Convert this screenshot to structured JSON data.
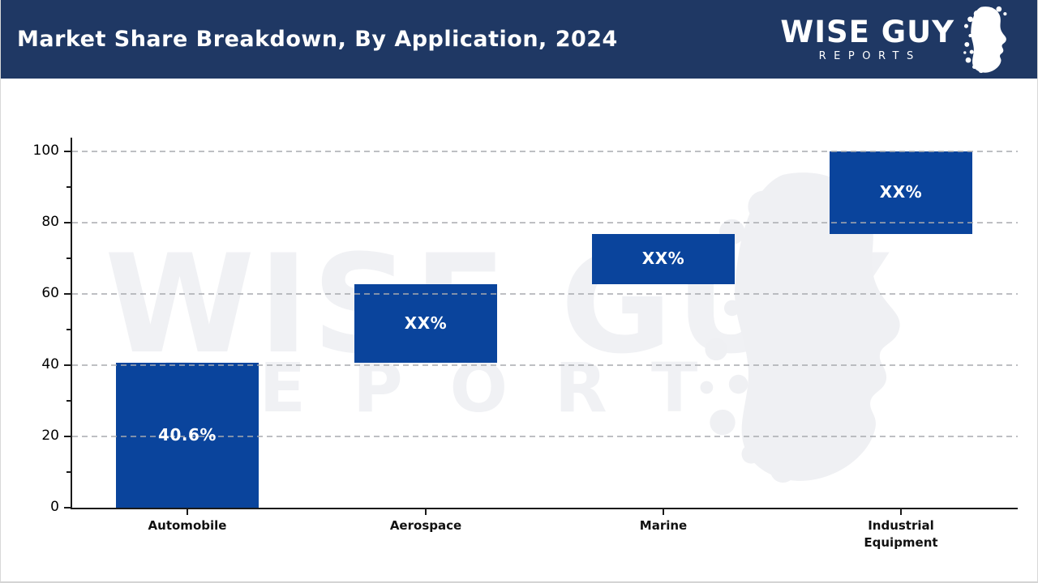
{
  "header": {
    "title": "Market Share Breakdown, By Application, 2024",
    "brand": {
      "line1": "WISE GUY",
      "line2": "REPORTS"
    }
  },
  "watermark": {
    "line1": "WISE GUY",
    "line2": "REPORTS"
  },
  "chart_data": {
    "type": "bar",
    "subtype": "waterfall",
    "title": "Market Share Breakdown, By Application, 2024",
    "categories": [
      "Automobile",
      "Aerospace",
      "Marine",
      "Industrial Equipment"
    ],
    "segments": [
      {
        "category": "Automobile",
        "start": 0,
        "end": 40.6,
        "label": "40.6%"
      },
      {
        "category": "Aerospace",
        "start": 40.6,
        "end": 62.8,
        "label": "XX%"
      },
      {
        "category": "Marine",
        "start": 62.8,
        "end": 76.9,
        "label": "XX%"
      },
      {
        "category": "Industrial Equipment",
        "start": 76.9,
        "end": 100,
        "label": "XX%"
      }
    ],
    "ytick_labels": [
      "0",
      "20",
      "40",
      "60",
      "80",
      "100"
    ],
    "yticks": [
      0,
      20,
      40,
      60,
      80,
      100
    ],
    "minor_yticks": [
      10,
      30,
      50,
      70,
      90
    ],
    "ylim": [
      0,
      104
    ],
    "xlabel": "",
    "ylabel": "",
    "grid": "dashed-horizontal",
    "legend": "none",
    "bar_color": "#0a449c",
    "bar_label_color": "#ffffff",
    "header_color": "#1f3864"
  }
}
